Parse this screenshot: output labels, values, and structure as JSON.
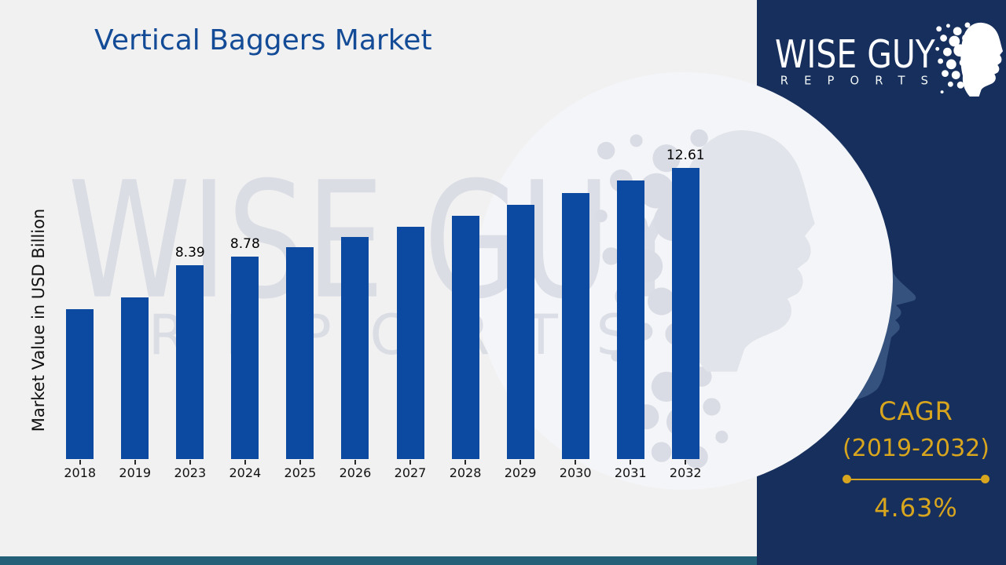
{
  "title": {
    "text": "Vertical Baggers Market"
  },
  "brand": {
    "line1": "WISE GUY",
    "line2": "REPORTS"
  },
  "watermark": {
    "line1": "WISE GUY",
    "line2": "REPORTS"
  },
  "cagr": {
    "label": "CAGR",
    "range": "(2019-2032)",
    "value": "4.63%"
  },
  "colors": {
    "bar": "#0c4aa1",
    "title_blue": "#134b96",
    "panel_navy": "#172f5c",
    "gold": "#d8a51e",
    "teal_strip": "#246078",
    "face_blue": "#35517e"
  },
  "chart_data": {
    "type": "bar",
    "title": "Vertical Baggers Market",
    "xlabel": "",
    "ylabel": "Market Value in USD Billion",
    "categories": [
      "2018",
      "2019",
      "2023",
      "2024",
      "2025",
      "2026",
      "2027",
      "2028",
      "2029",
      "2030",
      "2031",
      "2032"
    ],
    "values": [
      6.5,
      7.0,
      8.39,
      8.78,
      9.19,
      9.61,
      10.06,
      10.52,
      11.01,
      11.52,
      12.05,
      12.61
    ],
    "point_labels": [
      "",
      "",
      "8.39",
      "8.78",
      "",
      "",
      "",
      "",
      "",
      "",
      "",
      "12.61"
    ],
    "ylim": [
      0,
      13.5
    ],
    "grid": false,
    "legend": "none",
    "bar_color": "#0c4aa1"
  }
}
